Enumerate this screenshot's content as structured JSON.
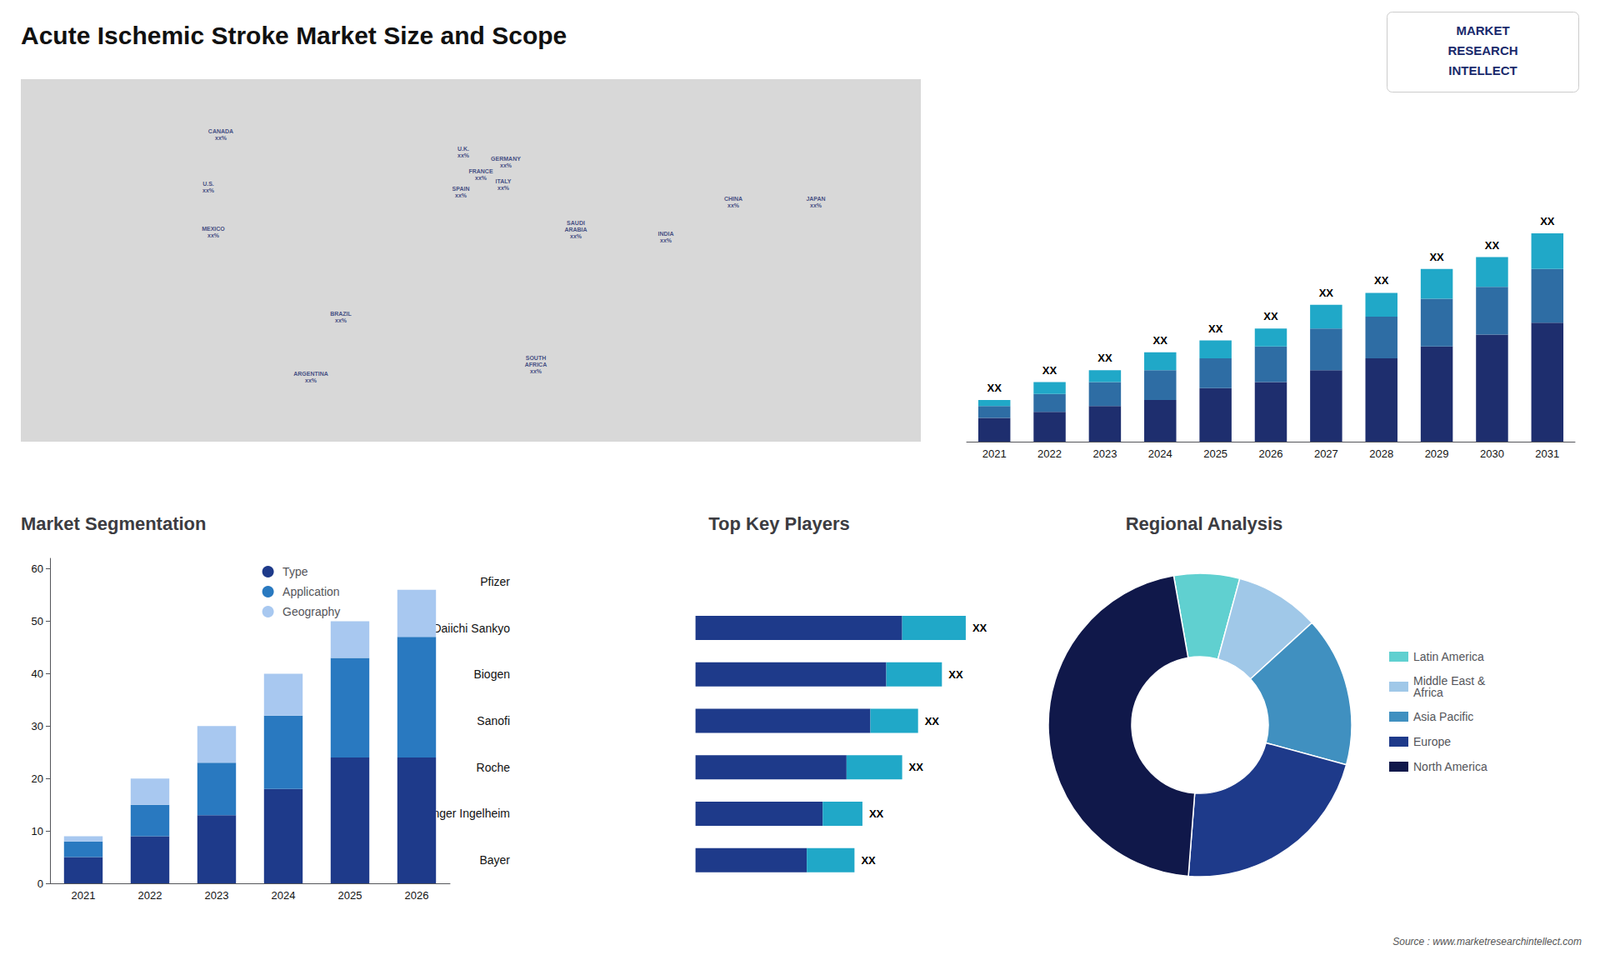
{
  "title": "Acute Ischemic Stroke Market Size and Scope",
  "annotations": [
    "Source : www.marketresearchintellect.com",
    "MARKET",
    "RESEARCH",
    "INTELLECT"
  ],
  "chart_data": [
    {
      "type": "scatter",
      "x": [
        -100,
        -105,
        -103,
        -52,
        -64,
        -3,
        4,
        -4,
        14,
        13,
        42,
        26,
        105,
        78,
        138
      ],
      "values": [
        63,
        42,
        24,
        -10,
        -34,
        56,
        47,
        40,
        52,
        43,
        25,
        -29,
        36,
        22,
        36
      ],
      "value_labels": [
        "CANADA\nxx%",
        "U.S.\nxx%",
        "MEXICO\nxx%",
        "BRAZIL\nxx%",
        "ARGENTINA\nxx%",
        "U.K.\nxx%",
        "FRANCE\nxx%",
        "SPAIN\nxx%",
        "GERMANY\nxx%",
        "ITALY\nxx%",
        "SAUDI\nARABIA\nxx%",
        "SOUTH\nAFRICA\nxx%",
        "CHINA\nxx%",
        "INDIA\nxx%",
        "JAPAN\nxx%"
      ],
      "xlim": [
        -180,
        180
      ],
      "ylim": [
        -60,
        85
      ],
      "tick_labels": false,
      "grid": false,
      "color": "#d8d8d8"
    },
    {
      "type": "bar",
      "stacked": true,
      "categories": [
        "2021",
        "2022",
        "2023",
        "2024",
        "2025",
        "2026",
        "2027",
        "2028",
        "2029",
        "2030",
        "2031"
      ],
      "series": [
        {
          "color": "#1e2e6e",
          "values": [
            4,
            5,
            6,
            7,
            9,
            10,
            12,
            14,
            16,
            18,
            20
          ]
        },
        {
          "color": "#2e6da4",
          "values": [
            2,
            3,
            4,
            5,
            5,
            6,
            7,
            7,
            8,
            8,
            9
          ]
        },
        {
          "color": "#20a8c8",
          "values": [
            1,
            2,
            2,
            3,
            3,
            3,
            4,
            4,
            5,
            5,
            6
          ]
        }
      ],
      "ylim": [
        0,
        53.2
      ],
      "tick_labels": "x",
      "grid": false,
      "annotations": [
        "XX",
        "XX",
        "XX",
        "XX",
        "XX",
        "XX",
        "XX",
        "XX",
        "XX",
        "XX",
        "XX"
      ]
    },
    {
      "type": "bar",
      "stacked": true,
      "title": "Market Segmentation",
      "categories": [
        "2021",
        "2022",
        "2023",
        "2024",
        "2025",
        "2026"
      ],
      "series": [
        {
          "name": "Type",
          "color": "#1e3a8a",
          "values": [
            5,
            9,
            13,
            18,
            24,
            24
          ]
        },
        {
          "name": "Application",
          "color": "#2979c0",
          "values": [
            3,
            6,
            10,
            14,
            19,
            23
          ]
        },
        {
          "name": "Geography",
          "color": "#a8c8f0",
          "values": [
            1,
            5,
            7,
            8,
            7,
            9
          ]
        }
      ],
      "ylim": [
        0,
        62
      ],
      "yticks": [
        0,
        10,
        20,
        30,
        40,
        50,
        60
      ],
      "grid": false,
      "legend": "upper center"
    },
    {
      "type": "bar",
      "orientation": "horizontal",
      "stacked": true,
      "title": "Top Key Players",
      "categories": [
        "Pfizer",
        "Daiichi Sankyo",
        "Biogen",
        "Sanofi",
        "Roche",
        "Boehringer Ingelheim",
        "Bayer"
      ],
      "series": [
        {
          "color": "#1e3a8a",
          "values": [
            0,
            52,
            48,
            44,
            38,
            32,
            28
          ]
        },
        {
          "color": "#20a8c8",
          "values": [
            0,
            16,
            14,
            12,
            14,
            10,
            12
          ]
        }
      ],
      "xlim": [
        -45,
        85
      ],
      "tick_labels": "y",
      "grid": false,
      "annotations": [
        null,
        "XX",
        "XX",
        "XX",
        "XX",
        "XX",
        "XX"
      ]
    },
    {
      "type": "pie",
      "title": "Regional Analysis",
      "categories": [
        "Latin America",
        "Middle East &\nAfrica",
        "Asia Pacific",
        "Europe",
        "North America"
      ],
      "values": [
        7,
        9,
        16,
        22,
        46
      ],
      "colors": [
        "#60d0d0",
        "#a0c8e8",
        "#4090c0",
        "#1e3a8a",
        "#10184a"
      ],
      "legend": "right"
    }
  ]
}
